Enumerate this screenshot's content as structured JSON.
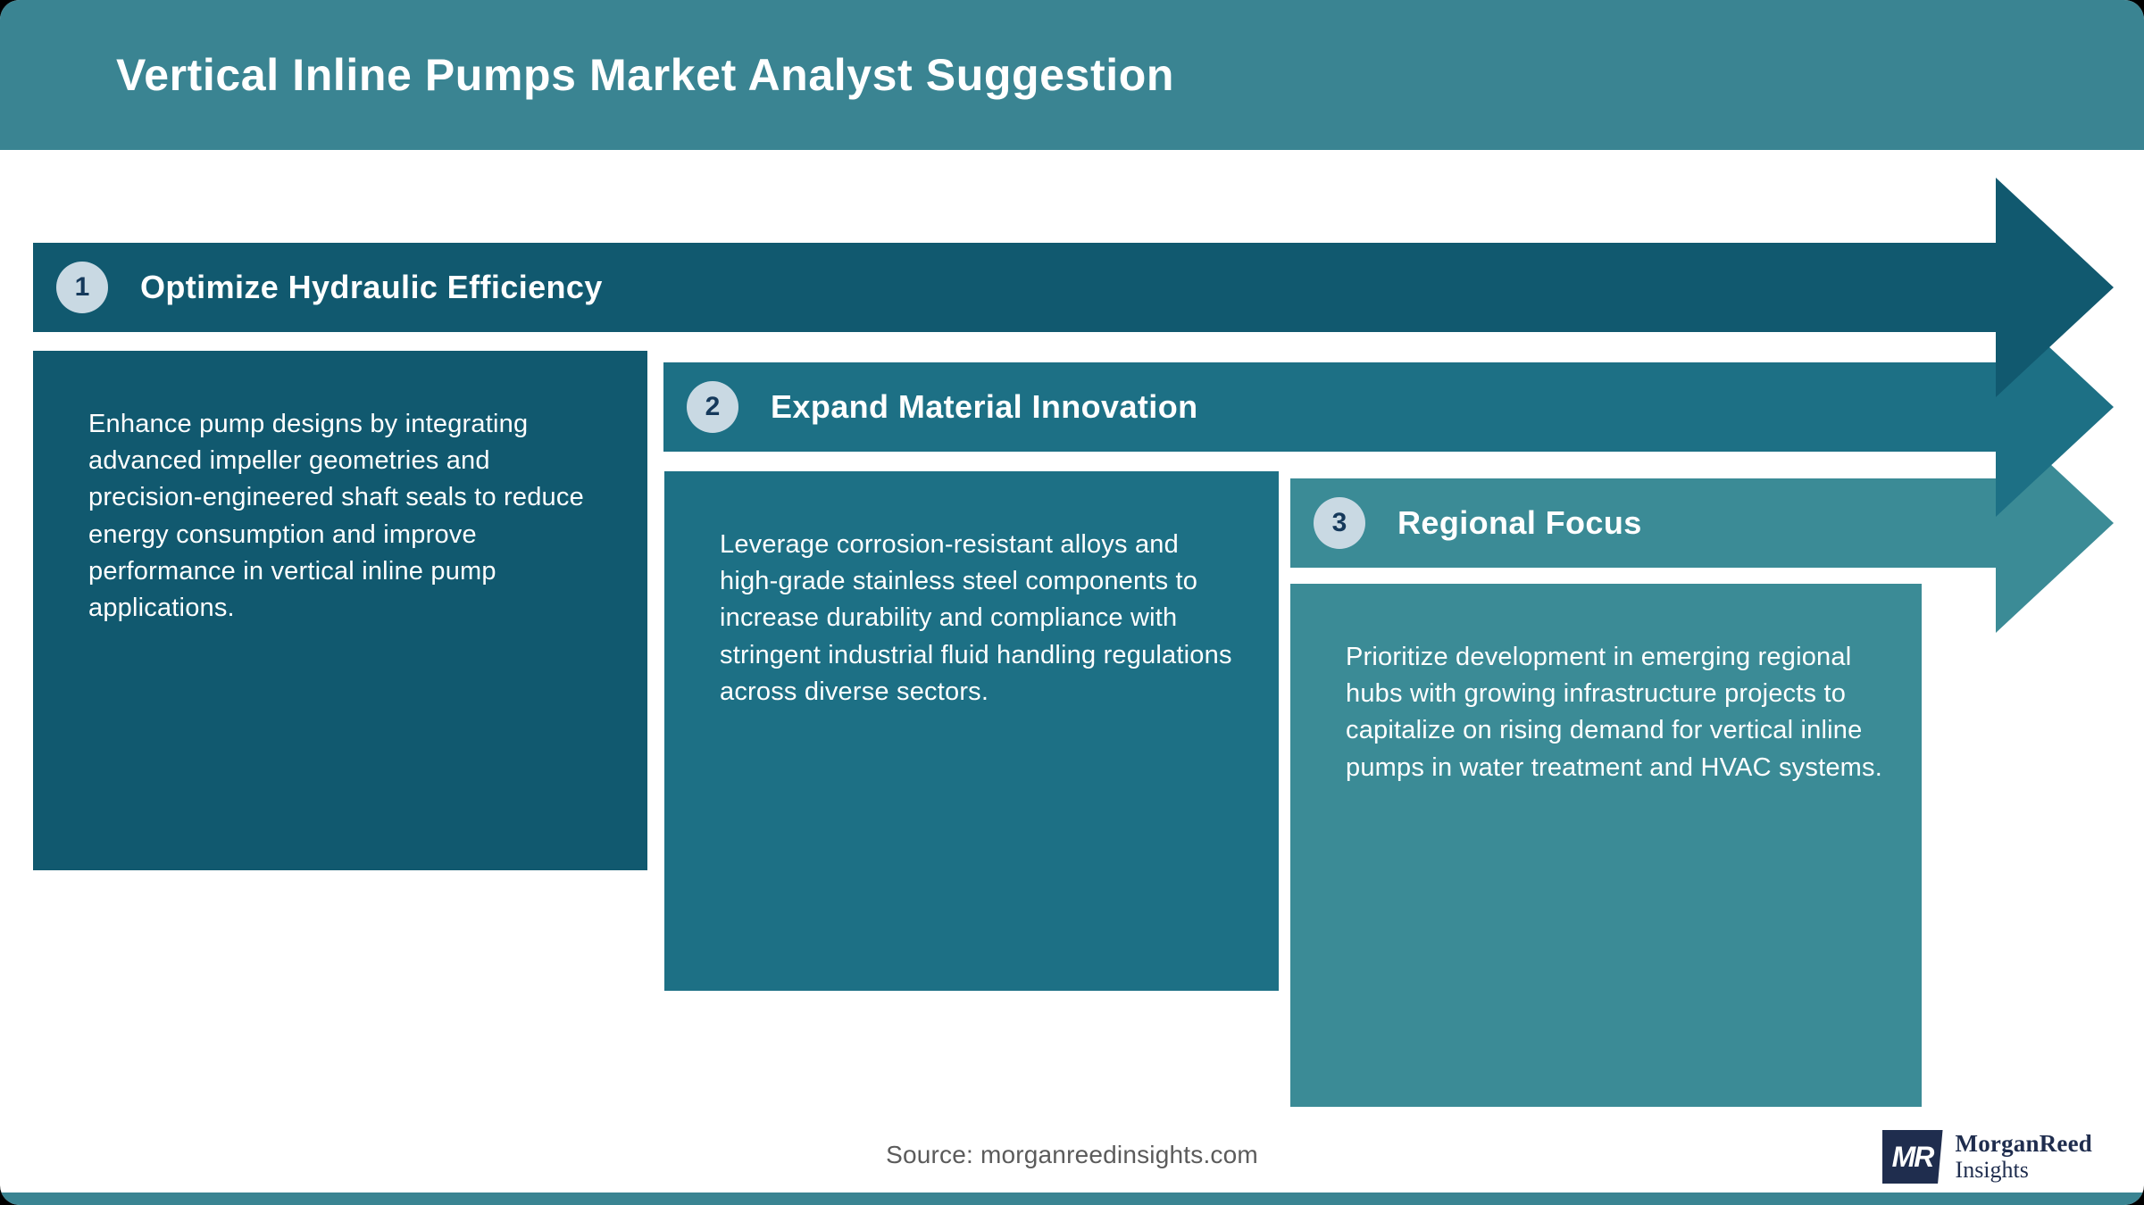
{
  "slide": {
    "title": "Vertical Inline Pumps Market Analyst Suggestion",
    "footer_source": "Source: morganreedinsights.com"
  },
  "steps": [
    {
      "number": "1",
      "title": "Optimize Hydraulic Efficiency",
      "description": "Enhance pump designs by integrating advanced impeller geometries and precision-engineered shaft seals to reduce energy consumption and improve performance in vertical inline pump applications."
    },
    {
      "number": "2",
      "title": "Expand Material Innovation",
      "description": "Leverage corrosion-resistant alloys and high-grade stainless steel components to increase durability and compliance with stringent industrial fluid handling regulations across diverse sectors."
    },
    {
      "number": "3",
      "title": "Regional Focus",
      "description": "Prioritize development in emerging regional hubs with growing infrastructure projects to capitalize on rising demand for vertical inline pumps in water treatment and HVAC systems."
    }
  ],
  "logo": {
    "mark": "MR",
    "brand_line1": "MorganReed",
    "brand_line2": "Insights"
  },
  "colors": {
    "header": "#3a8492",
    "step1": "#11596f",
    "step2": "#1d7085",
    "step3": "#3b8b96",
    "circle_bg": "#c9d9e3",
    "circle_text": "#15395b",
    "source_text": "#5b5b5b",
    "logo_navy": "#1f2d4e"
  }
}
